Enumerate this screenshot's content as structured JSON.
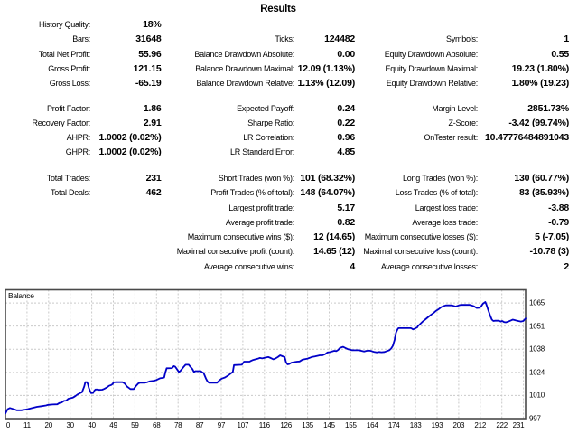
{
  "report": {
    "title": "Results",
    "rows": [
      {
        "c1l": "History Quality:",
        "c1v": "18%",
        "c2l": "",
        "c2v": "",
        "c3l": "",
        "c3v": ""
      },
      {
        "c1l": "Bars:",
        "c1v": "31648",
        "c2l": "Ticks:",
        "c2v": "124482",
        "c3l": "Symbols:",
        "c3v": "1"
      },
      {
        "c1l": "Total Net Profit:",
        "c1v": "55.96",
        "c2l": "Balance Drawdown Absolute:",
        "c2v": "0.00",
        "c3l": "Equity Drawdown Absolute:",
        "c3v": "0.55"
      },
      {
        "c1l": "Gross Profit:",
        "c1v": "121.15",
        "c2l": "Balance Drawdown Maximal:",
        "c2v": "12.09 (1.13%)",
        "c3l": "Equity Drawdown Maximal:",
        "c3v": "19.23 (1.80%)"
      },
      {
        "c1l": "Gross Loss:",
        "c1v": "-65.19",
        "c2l": "Balance Drawdown Relative:",
        "c2v": "1.13% (12.09)",
        "c3l": "Equity Drawdown Relative:",
        "c3v": "1.80% (19.23)"
      },
      {
        "c1l": "Profit Factor:",
        "c1v": "1.86",
        "c2l": "Expected Payoff:",
        "c2v": "0.24",
        "c3l": "Margin Level:",
        "c3v": "2851.73%"
      },
      {
        "c1l": "Recovery Factor:",
        "c1v": "2.91",
        "c2l": "Sharpe Ratio:",
        "c2v": "0.22",
        "c3l": "Z-Score:",
        "c3v": "-3.42 (99.74%)"
      },
      {
        "c1l": "AHPR:",
        "c1v": "1.0002 (0.02%)",
        "c2l": "LR Correlation:",
        "c2v": "0.96",
        "c3l": "OnTester result:",
        "c3v": "10.47776484891043"
      },
      {
        "c1l": "GHPR:",
        "c1v": "1.0002 (0.02%)",
        "c2l": "LR Standard Error:",
        "c2v": "4.85",
        "c3l": "",
        "c3v": ""
      },
      {
        "c1l": "Total Trades:",
        "c1v": "231",
        "c2l": "Short Trades (won %):",
        "c2v": "101 (68.32%)",
        "c3l": "Long Trades (won %):",
        "c3v": "130 (60.77%)"
      },
      {
        "c1l": "Total Deals:",
        "c1v": "462",
        "c2l": "Profit Trades (% of total):",
        "c2v": "148 (64.07%)",
        "c3l": "Loss Trades (% of total):",
        "c3v": "83 (35.93%)"
      },
      {
        "c1l": "",
        "c1v": "",
        "c2l": "Largest profit trade:",
        "c2v": "5.17",
        "c3l": "Largest loss trade:",
        "c3v": "-3.88"
      },
      {
        "c1l": "",
        "c1v": "",
        "c2l": "Average profit trade:",
        "c2v": "0.82",
        "c3l": "Average loss trade:",
        "c3v": "-0.79"
      },
      {
        "c1l": "",
        "c1v": "",
        "c2l": "Maximum consecutive wins ($):",
        "c2v": "12 (14.65)",
        "c3l": "Maximum consecutive losses ($):",
        "c3v": "5 (-7.05)"
      },
      {
        "c1l": "",
        "c1v": "",
        "c2l": "Maximal consecutive profit (count):",
        "c2v": "14.65 (12)",
        "c3l": "Maximal consecutive loss (count):",
        "c3v": "-10.78 (3)"
      },
      {
        "c1l": "",
        "c1v": "",
        "c2l": "Average consecutive wins:",
        "c2v": "4",
        "c3l": "Average consecutive losses:",
        "c3v": "2"
      }
    ]
  },
  "chart_data": {
    "type": "line",
    "title": "Balance",
    "xlabel": "",
    "ylabel": "",
    "x_range": [
      0,
      231
    ],
    "y_range": [
      997,
      1072.8
    ],
    "grid": true,
    "legend_position": "none",
    "x_ticks": [
      "0",
      "11",
      "20",
      "30",
      "40",
      "49",
      "59",
      "68",
      "78",
      "87",
      "97",
      "107",
      "116",
      "126",
      "135",
      "145",
      "155",
      "164",
      "174",
      "183",
      "193",
      "203",
      "212",
      "222",
      "231"
    ],
    "y_ticks": [
      "997",
      "1010",
      "1024",
      "1038",
      "1051",
      "1065"
    ],
    "line_color": "#0000C8",
    "grid_color": "#c9c9c9",
    "frame_color": "#4a4a4a",
    "series": [
      {
        "name": "Balance",
        "points": [
          [
            0,
            1000
          ],
          [
            1,
            1002.6
          ],
          [
            2,
            1003.2
          ],
          [
            4,
            1002.4
          ],
          [
            5,
            1001.9
          ],
          [
            7,
            1001.9
          ],
          [
            9,
            1002.3
          ],
          [
            10,
            1002.6
          ],
          [
            12,
            1003.2
          ],
          [
            14,
            1003.9
          ],
          [
            16,
            1004.3
          ],
          [
            18,
            1004.7
          ],
          [
            19,
            1005.1
          ],
          [
            21,
            1005.3
          ],
          [
            23,
            1005.4
          ],
          [
            24,
            1006.2
          ],
          [
            25,
            1006.5
          ],
          [
            26,
            1007.4
          ],
          [
            27,
            1007.6
          ],
          [
            28,
            1008.7
          ],
          [
            30,
            1009.4
          ],
          [
            31,
            1010.2
          ],
          [
            32,
            1011.2
          ],
          [
            33,
            1011.9
          ],
          [
            34,
            1012.5
          ],
          [
            35,
            1016
          ],
          [
            35.5,
            1018.5
          ],
          [
            36.2,
            1018.4
          ],
          [
            36.6,
            1017.3
          ],
          [
            37,
            1015.2
          ],
          [
            37.5,
            1013.5
          ],
          [
            38,
            1012
          ],
          [
            39,
            1012.1
          ],
          [
            39.5,
            1013.5
          ],
          [
            40,
            1014.1
          ],
          [
            41,
            1014.1
          ],
          [
            41.6,
            1013.9
          ],
          [
            43,
            1014
          ],
          [
            43.5,
            1014.3
          ],
          [
            44,
            1014.6
          ],
          [
            45,
            1015.3
          ],
          [
            46,
            1016.3
          ],
          [
            47,
            1016.8
          ],
          [
            47.6,
            1017.3
          ],
          [
            48,
            1018.3
          ],
          [
            49,
            1018.4
          ],
          [
            52,
            1018.4
          ],
          [
            53,
            1017.6
          ],
          [
            54,
            1015.9
          ],
          [
            55,
            1014.9
          ],
          [
            55.5,
            1014.4
          ],
          [
            57,
            1014.4
          ],
          [
            58,
            1016.2
          ],
          [
            59,
            1017.7
          ],
          [
            59.6,
            1018
          ],
          [
            60,
            1018.1
          ],
          [
            62,
            1018.1
          ],
          [
            63,
            1018.4
          ],
          [
            64,
            1018.9
          ],
          [
            66,
            1019.3
          ],
          [
            67,
            1019.7
          ],
          [
            68.6,
            1020.7
          ],
          [
            70,
            1021
          ],
          [
            70.5,
            1021.2
          ],
          [
            71,
            1024
          ],
          [
            71.6,
            1026.6
          ],
          [
            74,
            1026.7
          ],
          [
            74.8,
            1027.9
          ],
          [
            75.4,
            1027.5
          ],
          [
            76,
            1026.4
          ],
          [
            77,
            1024.5
          ],
          [
            77.6,
            1024.9
          ],
          [
            78.4,
            1026.2
          ],
          [
            79,
            1027.2
          ],
          [
            80,
            1028.7
          ],
          [
            81.4,
            1028.7
          ],
          [
            82,
            1027.7
          ],
          [
            83,
            1026.2
          ],
          [
            83.7,
            1024.5
          ],
          [
            84.4,
            1024.9
          ],
          [
            86.8,
            1024.9
          ],
          [
            87.4,
            1024.2
          ],
          [
            88,
            1023.9
          ],
          [
            89,
            1020.7
          ],
          [
            89.7,
            1018.9
          ],
          [
            90.4,
            1018.1
          ],
          [
            94,
            1018.1
          ],
          [
            95,
            1019.5
          ],
          [
            96,
            1020.5
          ],
          [
            97.5,
            1021.2
          ],
          [
            98.7,
            1022.2
          ],
          [
            99.4,
            1022.9
          ],
          [
            100,
            1023.5
          ],
          [
            101,
            1024.5
          ],
          [
            101.5,
            1028.5
          ],
          [
            105,
            1028.7
          ],
          [
            105.8,
            1030.2
          ],
          [
            106,
            1030.5
          ],
          [
            108.4,
            1030.5
          ],
          [
            109,
            1030.9
          ],
          [
            110,
            1031.5
          ],
          [
            112,
            1032.2
          ],
          [
            113,
            1032.7
          ],
          [
            114,
            1032.4
          ],
          [
            115.5,
            1032.9
          ],
          [
            116.7,
            1033.2
          ],
          [
            117.4,
            1032.9
          ],
          [
            118.5,
            1032.2
          ],
          [
            119,
            1031.9
          ],
          [
            120,
            1032.4
          ],
          [
            121,
            1033.2
          ],
          [
            122,
            1034.2
          ],
          [
            123,
            1033.7
          ],
          [
            124,
            1033.2
          ],
          [
            124.6,
            1030.2
          ],
          [
            125.3,
            1028.9
          ],
          [
            126,
            1029.1
          ],
          [
            127,
            1029.9
          ],
          [
            128,
            1030.2
          ],
          [
            129.5,
            1030.5
          ],
          [
            130.6,
            1030.6
          ],
          [
            132,
            1031.7
          ],
          [
            134,
            1032.2
          ],
          [
            135,
            1032.7
          ],
          [
            136,
            1033.2
          ],
          [
            137.4,
            1033.5
          ],
          [
            138.5,
            1033.9
          ],
          [
            139.6,
            1034.2
          ],
          [
            140.7,
            1034.2
          ],
          [
            142,
            1034.9
          ],
          [
            143,
            1035.9
          ],
          [
            144,
            1036.1
          ],
          [
            145,
            1036.5
          ],
          [
            146,
            1036.9
          ],
          [
            147,
            1036.7
          ],
          [
            147.8,
            1037.4
          ],
          [
            148.5,
            1038.5
          ],
          [
            149.9,
            1039.2
          ],
          [
            151,
            1038.5
          ],
          [
            152,
            1037.9
          ],
          [
            153,
            1037.5
          ],
          [
            154,
            1037.2
          ],
          [
            157,
            1037.2
          ],
          [
            158,
            1036.9
          ],
          [
            159.3,
            1036.5
          ],
          [
            160.4,
            1036.9
          ],
          [
            161.5,
            1037
          ],
          [
            162.6,
            1036.7
          ],
          [
            163.8,
            1036.2
          ],
          [
            164.9,
            1035.9
          ],
          [
            166,
            1036.2
          ],
          [
            167,
            1036
          ],
          [
            168.3,
            1036.2
          ],
          [
            169.4,
            1036.7
          ],
          [
            170.5,
            1037.2
          ],
          [
            171.3,
            1038.2
          ],
          [
            172,
            1039.7
          ],
          [
            172.8,
            1043.2
          ],
          [
            173.5,
            1047.7
          ],
          [
            174.3,
            1049.9
          ],
          [
            174.6,
            1050.2
          ],
          [
            179.9,
            1050.2
          ],
          [
            180.3,
            1050.1
          ],
          [
            181,
            1049.5
          ],
          [
            181.8,
            1049.9
          ],
          [
            182.9,
            1050.7
          ],
          [
            183.1,
            1051.3
          ],
          [
            184.3,
            1052.8
          ],
          [
            185.4,
            1054.2
          ],
          [
            186.6,
            1055.5
          ],
          [
            187.8,
            1056.8
          ],
          [
            188.9,
            1058
          ],
          [
            190.1,
            1059.1
          ],
          [
            191.3,
            1060.5
          ],
          [
            192.5,
            1061.5
          ],
          [
            193.6,
            1062.6
          ],
          [
            194.8,
            1063.3
          ],
          [
            195.6,
            1063.6
          ],
          [
            198.3,
            1063.6
          ],
          [
            199.1,
            1063.3
          ],
          [
            199.9,
            1062.9
          ],
          [
            200.7,
            1063.3
          ],
          [
            201.8,
            1063.8
          ],
          [
            202.6,
            1063.9
          ],
          [
            206.2,
            1063.9
          ],
          [
            206.9,
            1063.6
          ],
          [
            208.1,
            1063.1
          ],
          [
            209.3,
            1062.1
          ],
          [
            210.5,
            1062.2
          ],
          [
            211.3,
            1063.1
          ],
          [
            212,
            1064.5
          ],
          [
            213.1,
            1065.6
          ],
          [
            213.6,
            1064.1
          ],
          [
            214.4,
            1060.9
          ],
          [
            215.2,
            1057.8
          ],
          [
            216,
            1055.2
          ],
          [
            216.7,
            1054.4
          ],
          [
            217.5,
            1054.6
          ],
          [
            219.1,
            1054.6
          ],
          [
            219.9,
            1054.1
          ],
          [
            220.6,
            1054.4
          ],
          [
            221.4,
            1053.8
          ],
          [
            222.2,
            1053.6
          ],
          [
            223.4,
            1054.1
          ],
          [
            224.6,
            1054.8
          ],
          [
            225.3,
            1055.2
          ],
          [
            226.5,
            1054.8
          ],
          [
            227.7,
            1054.4
          ],
          [
            228.9,
            1054.1
          ],
          [
            230,
            1054.4
          ],
          [
            231,
            1055.9
          ]
        ]
      }
    ]
  }
}
